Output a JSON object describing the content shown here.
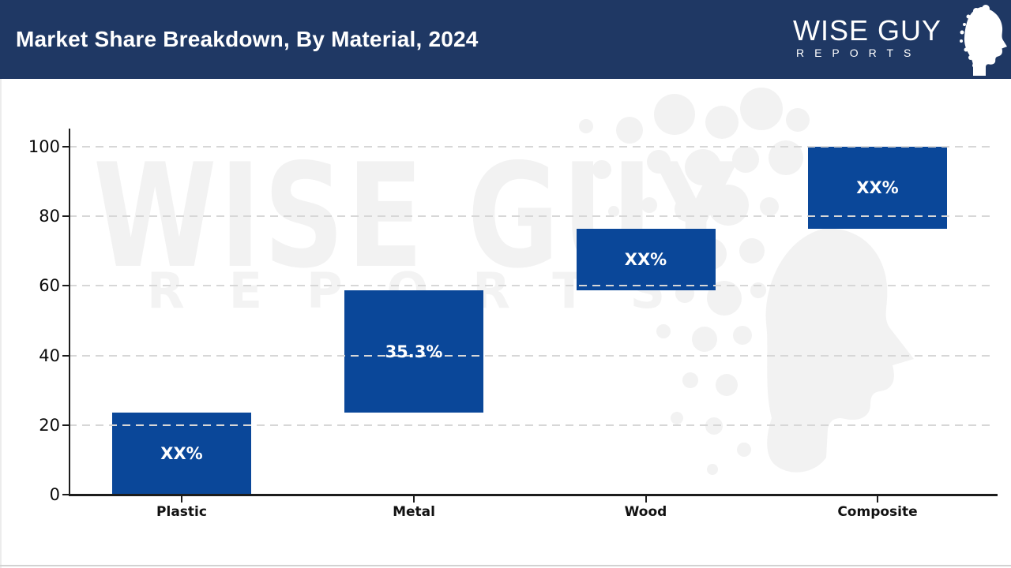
{
  "header": {
    "title": "Market Share Breakdown, By Material, 2024",
    "background": "#1f3864",
    "brand": {
      "name": "WISE GUY",
      "subtitle": "REPORTS"
    }
  },
  "watermark": {
    "line1": "WISE GUY",
    "line2": "REPORTS"
  },
  "colors": {
    "header_bg": "#1f3864",
    "bar_blue": "#0a4799",
    "axis": "#1c1c1c",
    "gridline": "#d7d7d7",
    "bar_label": "#ffffff",
    "watermark": "#f2f2f2"
  },
  "chart_data": {
    "type": "bar",
    "subtype": "waterfall",
    "title": "Market Share Breakdown, By Material, 2024",
    "categories": [
      "Plastic",
      "Metal",
      "Wood",
      "Composite"
    ],
    "segments": [
      {
        "category": "Plastic",
        "start": 0,
        "end": 23.5,
        "label": "XX%"
      },
      {
        "category": "Metal",
        "start": 23.5,
        "end": 58.8,
        "label": "35.3%"
      },
      {
        "category": "Wood",
        "start": 58.8,
        "end": 76.5,
        "label": "XX%"
      },
      {
        "category": "Composite",
        "start": 76.5,
        "end": 100,
        "label": "XX%"
      }
    ],
    "ylim": [
      0,
      100
    ],
    "yticks": [
      0,
      20,
      40,
      60,
      80,
      100
    ],
    "grid": "horizontal-dashed-over-bars",
    "legend": "none",
    "bar_color": "#0a4799"
  }
}
